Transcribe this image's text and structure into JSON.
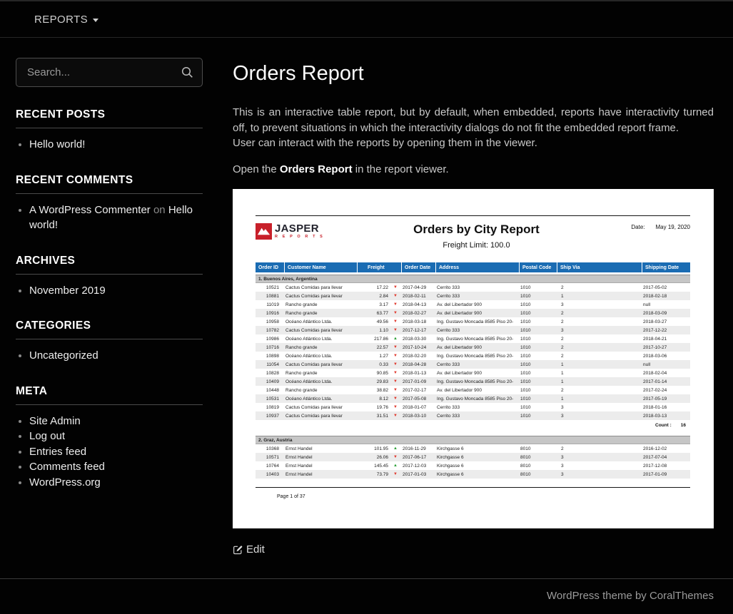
{
  "navbar": {
    "menu_label": "REPORTS"
  },
  "sidebar": {
    "search_placeholder": "Search...",
    "recent_posts": {
      "title": "RECENT POSTS",
      "items": [
        "Hello world!"
      ]
    },
    "recent_comments": {
      "title": "RECENT COMMENTS",
      "author": "A WordPress Commenter",
      "connector": "on",
      "post": "Hello world!"
    },
    "archives": {
      "title": "ARCHIVES",
      "items": [
        "November 2019"
      ]
    },
    "categories": {
      "title": "CATEGORIES",
      "items": [
        "Uncategorized"
      ]
    },
    "meta": {
      "title": "META",
      "items": [
        "Site Admin",
        "Log out",
        "Entries feed",
        "Comments feed",
        "WordPress.org"
      ]
    }
  },
  "main": {
    "title": "Orders Report",
    "p1_line1": "This is an interactive table report, but by default, when embedded, reports have interactivity turned off, to prevent situations in which the interactivity dialogs do not fit the embedded report frame.",
    "p1_line2": "User can interact with the reports by opening them in the viewer.",
    "p2_prefix": "Open the ",
    "p2_link": "Orders Report",
    "p2_suffix": " in the report viewer.",
    "edit_label": "Edit"
  },
  "report": {
    "logo_brand": "JASPER",
    "logo_sub": "R E P O R T S",
    "title": "Orders by City Report",
    "subtitle": "Freight Limit: 100.0",
    "date_label": "Date:",
    "date_value": "May 19, 2020",
    "columns": [
      "Order ID",
      "Customer Name",
      "Freight",
      "Order Date",
      "Address",
      "Postal Code",
      "Ship Via",
      "Shipping Date"
    ],
    "row_fields": [
      "order_id",
      "customer_name",
      "freight",
      "freight_trend",
      "order_date",
      "address",
      "postal_code",
      "ship_via",
      "shipping_date"
    ],
    "groups": [
      {
        "label": "1. Buenos Aires, Argentina",
        "rows": [
          [
            "10521",
            "Cactus Comidas para llevar",
            "17.22",
            "down",
            "2017-04-29",
            "Cerrito 333",
            "1010",
            "2",
            "2017-05-02"
          ],
          [
            "10881",
            "Cactus Comidas para llevar",
            "2.84",
            "down",
            "2018-02-11",
            "Cerrito 333",
            "1010",
            "1",
            "2018-02-18"
          ],
          [
            "11019",
            "Rancho grande",
            "3.17",
            "down",
            "2018-04-13",
            "Av. del Libertador 900",
            "1010",
            "3",
            "null"
          ],
          [
            "10916",
            "Rancho grande",
            "63.77",
            "down",
            "2018-02-27",
            "Av. del Libertador 900",
            "1010",
            "2",
            "2018-03-09"
          ],
          [
            "10958",
            "Océano Atlántico Ltda.",
            "49.56",
            "down",
            "2018-03-18",
            "Ing. Gustavo Moncada 8585 Piso 20-",
            "1010",
            "2",
            "2018-03-27"
          ],
          [
            "10782",
            "Cactus Comidas para llevar",
            "1.10",
            "down",
            "2017-12-17",
            "Cerrito 333",
            "1010",
            "3",
            "2017-12-22"
          ],
          [
            "10986",
            "Océano Atlántico Ltda.",
            "217.86",
            "up",
            "2018-03-30",
            "Ing. Gustavo Moncada 8585 Piso 20-",
            "1010",
            "2",
            "2018-04-21"
          ],
          [
            "10716",
            "Rancho grande",
            "22.57",
            "down",
            "2017-10-24",
            "Av. del Libertador 900",
            "1010",
            "2",
            "2017-10-27"
          ],
          [
            "10898",
            "Océano Atlántico Ltda.",
            "1.27",
            "down",
            "2018-02-20",
            "Ing. Gustavo Moncada 8585 Piso 20-",
            "1010",
            "2",
            "2018-03-06"
          ],
          [
            "11054",
            "Cactus Comidas para llevar",
            "0.33",
            "down",
            "2018-04-28",
            "Cerrito 333",
            "1010",
            "1",
            "null"
          ],
          [
            "10828",
            "Rancho grande",
            "90.85",
            "down",
            "2018-01-13",
            "Av. del Libertador 900",
            "1010",
            "1",
            "2018-02-04"
          ],
          [
            "10409",
            "Océano Atlántico Ltda.",
            "29.83",
            "down",
            "2017-01-09",
            "Ing. Gustavo Moncada 8585 Piso 20-",
            "1010",
            "1",
            "2017-01-14"
          ],
          [
            "10448",
            "Rancho grande",
            "38.82",
            "down",
            "2017-02-17",
            "Av. del Libertador 900",
            "1010",
            "2",
            "2017-02-24"
          ],
          [
            "10531",
            "Océano Atlántico Ltda.",
            "8.12",
            "down",
            "2017-05-08",
            "Ing. Gustavo Moncada 8585 Piso 20-",
            "1010",
            "1",
            "2017-05-19"
          ],
          [
            "10819",
            "Cactus Comidas para llevar",
            "19.76",
            "down",
            "2018-01-07",
            "Cerrito 333",
            "1010",
            "3",
            "2018-01-16"
          ],
          [
            "10937",
            "Cactus Comidas para llevar",
            "31.51",
            "down",
            "2018-03-10",
            "Cerrito 333",
            "1010",
            "3",
            "2018-03-13"
          ]
        ],
        "count_label": "Count :",
        "count_value": "16"
      },
      {
        "label": "2. Graz, Austria",
        "rows": [
          [
            "10368",
            "Ernst Handel",
            "101.95",
            "up",
            "2016-11-29",
            "Kirchgasse 6",
            "8010",
            "2",
            "2016-12-02"
          ],
          [
            "10571",
            "Ernst Handel",
            "26.06",
            "down",
            "2017-06-17",
            "Kirchgasse 6",
            "8010",
            "3",
            "2017-07-04"
          ],
          [
            "10764",
            "Ernst Handel",
            "145.45",
            "up",
            "2017-12-03",
            "Kirchgasse 6",
            "8010",
            "3",
            "2017-12-08"
          ],
          [
            "10403",
            "Ernst Handel",
            "73.79",
            "down",
            "2017-01-03",
            "Kirchgasse 6",
            "8010",
            "3",
            "2017-01-09"
          ]
        ]
      }
    ],
    "page_footer": "Page 1 of 37",
    "colors": {
      "table_header_blue": "#1a6cb3",
      "logo_red": "#c8202a",
      "trend_down_red": "#e03a2f",
      "trend_up_green": "#2fa13a"
    }
  },
  "footer": {
    "credit": "WordPress theme by CoralThemes"
  }
}
